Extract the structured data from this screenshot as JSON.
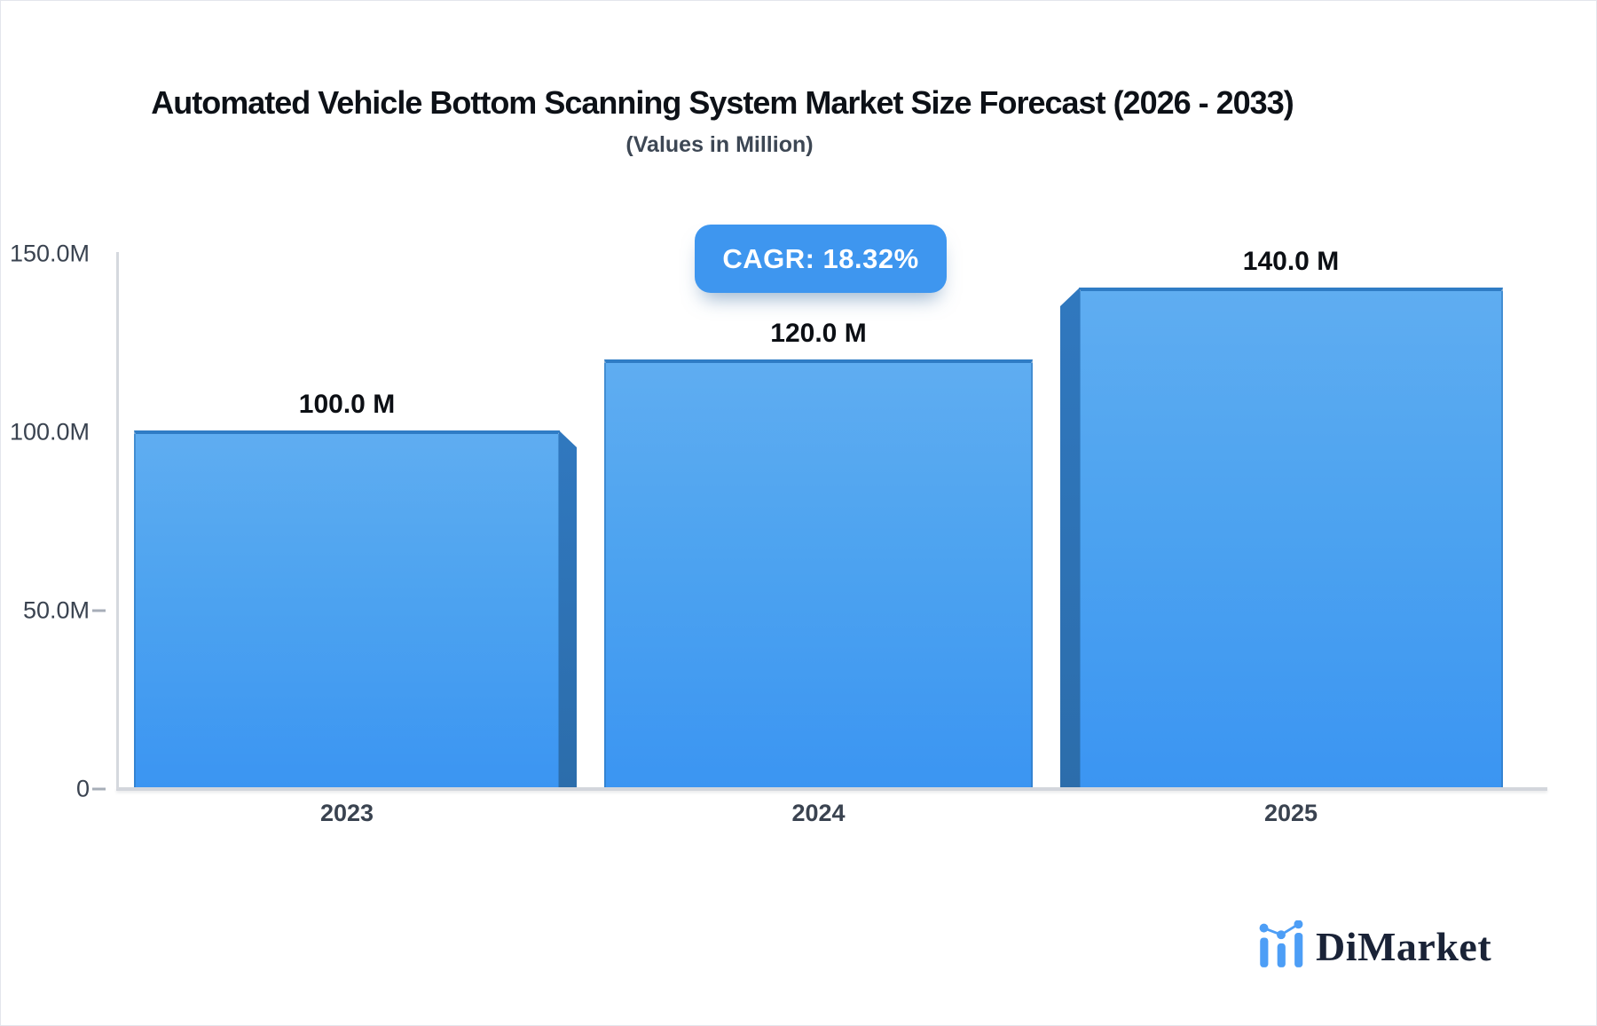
{
  "title": "Automated Vehicle Bottom Scanning System Market Size Forecast (2026 - 2033)",
  "subtitle": "(Values in Million)",
  "badge": {
    "label": "CAGR: 18.32%"
  },
  "logo": {
    "text": "DiMarket",
    "icon": "mini-bar-chart-icon"
  },
  "colors": {
    "bar_gradient_top": "#5fadf1",
    "bar_gradient_bottom": "#3b95f2",
    "bar_edge": "#2f7cc5",
    "bar_side_3d": "#2e72b4",
    "badge_bg": "#3e96ef",
    "axis_line": "#d5d8de",
    "axis_text": "#3a4350",
    "title_text": "#0d1117",
    "logo_navy": "#1a2337",
    "logo_blue": "#4d9ef6"
  },
  "chart_data": {
    "type": "bar",
    "title": "Automated Vehicle Bottom Scanning System Market Size Forecast (2026 - 2033)",
    "subtitle": "(Values in Million)",
    "cagr": "18.32%",
    "categories": [
      "2023",
      "2024",
      "2025"
    ],
    "values": [
      100,
      120,
      140
    ],
    "value_labels": [
      "100.0 M",
      "120.0 M",
      "140.0 M"
    ],
    "unit": "Million",
    "xlabel": "",
    "ylabel": "",
    "ylim": [
      0,
      150
    ],
    "yticks": [
      {
        "value": 0,
        "label": "0",
        "tick_visible": true
      },
      {
        "value": 50,
        "label": "50.0M",
        "tick_visible": true
      },
      {
        "value": 100,
        "label": "100.0M",
        "tick_visible": false
      },
      {
        "value": 150,
        "label": "150.0M",
        "tick_visible": false
      }
    ],
    "grid": false,
    "legend": "none",
    "bar_style": "3d-extruded-blue-gradient"
  }
}
